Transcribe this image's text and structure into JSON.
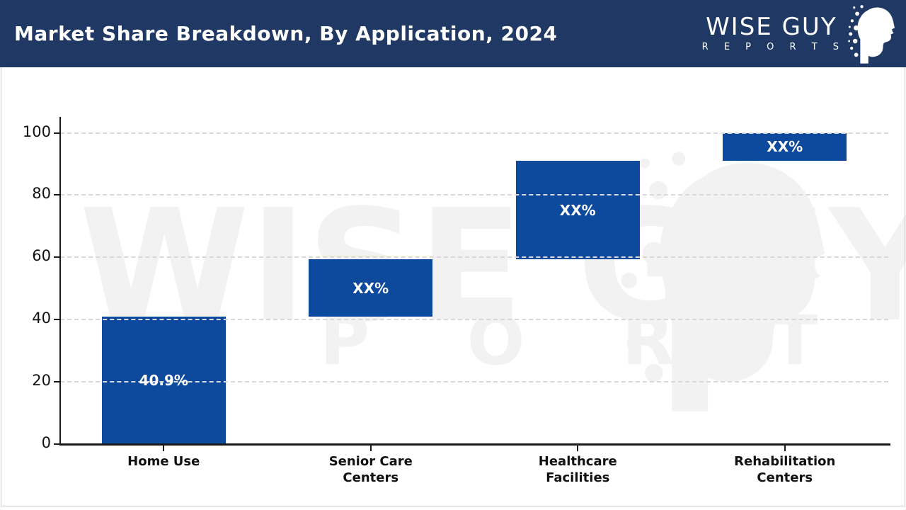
{
  "header": {
    "title": "Market Share Breakdown, By Application, 2024",
    "bg_color": "#1f3864",
    "logo": {
      "line1": "WISE GUY",
      "line2": "R E P O R T S"
    }
  },
  "watermark": {
    "line1": "WISE GUY",
    "line2": "P O R T S"
  },
  "chart_data": {
    "type": "bar",
    "variant": "waterfall",
    "title": "Market Share Breakdown, By Application, 2024",
    "categories": [
      "Home Use",
      "Senior Care Centers",
      "Healthcare Facilities",
      "Rehabilitation Centers"
    ],
    "segments": [
      {
        "category": "Home Use",
        "start": 0,
        "end": 40.9,
        "label": "40.9%"
      },
      {
        "category": "Senior Care Centers",
        "start": 40.9,
        "end": 59.3,
        "label": "XX%"
      },
      {
        "category": "Healthcare Facilities",
        "start": 59.3,
        "end": 91.0,
        "label": "XX%"
      },
      {
        "category": "Rehabilitation Centers",
        "start": 91.0,
        "end": 100.0,
        "label": "XX%"
      }
    ],
    "ylim": [
      0,
      100
    ],
    "yticks": [
      0,
      20,
      40,
      60,
      80,
      100
    ],
    "xlabel": "",
    "ylabel": "",
    "grid": "horizontal-dashed",
    "legend": "none",
    "bar_color": "#0d4a9e",
    "bar_label_color": "#ffffff",
    "axis_color": "#1a1a1a",
    "gridline_color": "#d8d8d8"
  }
}
